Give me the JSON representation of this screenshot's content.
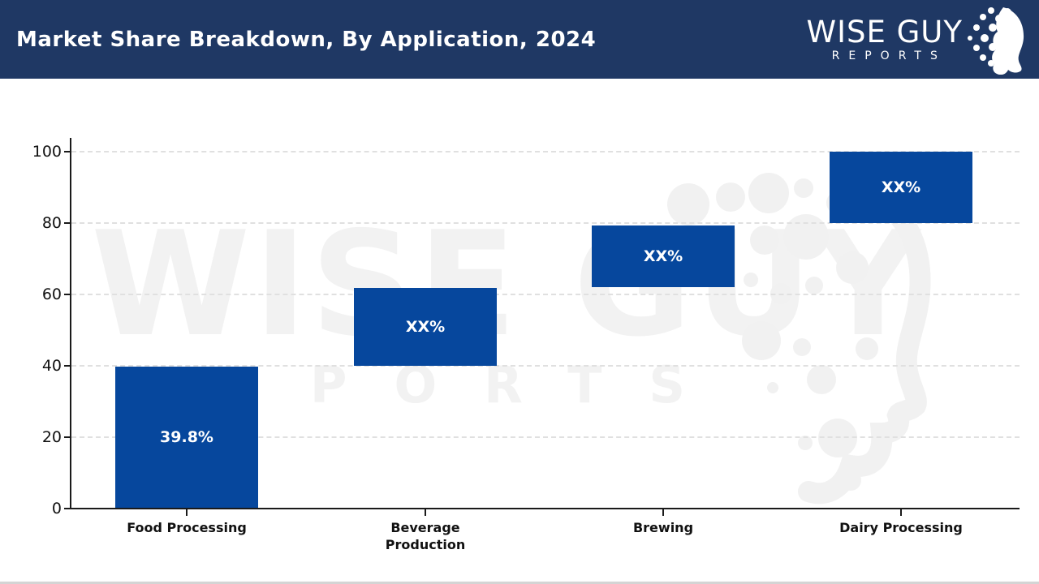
{
  "header": {
    "title": "Market Share Breakdown, By Application, 2024",
    "bg_color": "#1f3864",
    "logo": {
      "line1": "WISE GUY",
      "line2": "REPORTS"
    }
  },
  "watermark": {
    "line1": "WISE GUY",
    "line2": "PORTS"
  },
  "chart_data": {
    "type": "bar",
    "subtype": "waterfall",
    "title": "Market Share Breakdown, By Application, 2024",
    "categories": [
      "Food Processing",
      "Beverage Production",
      "Brewing",
      "Dairy Processing"
    ],
    "category_lines": [
      [
        "Food Processing"
      ],
      [
        "Beverage",
        "Production"
      ],
      [
        "Brewing"
      ],
      [
        "Dairy Processing"
      ]
    ],
    "segments": [
      {
        "category": "Food Processing",
        "start": 0,
        "end": 39.8,
        "label": "39.8%"
      },
      {
        "category": "Beverage Production",
        "start": 40,
        "end": 61.8,
        "label": "XX%"
      },
      {
        "category": "Brewing",
        "start": 62,
        "end": 79.3,
        "label": "XX%"
      },
      {
        "category": "Dairy Processing",
        "start": 80,
        "end": 100,
        "label": "XX%"
      }
    ],
    "ylim": [
      0,
      100
    ],
    "yticks": [
      0,
      20,
      40,
      60,
      80,
      100
    ],
    "grid": "dashed horizontal",
    "legend": "none",
    "bar_color": "#06479d",
    "label_color": "#ffffff"
  }
}
